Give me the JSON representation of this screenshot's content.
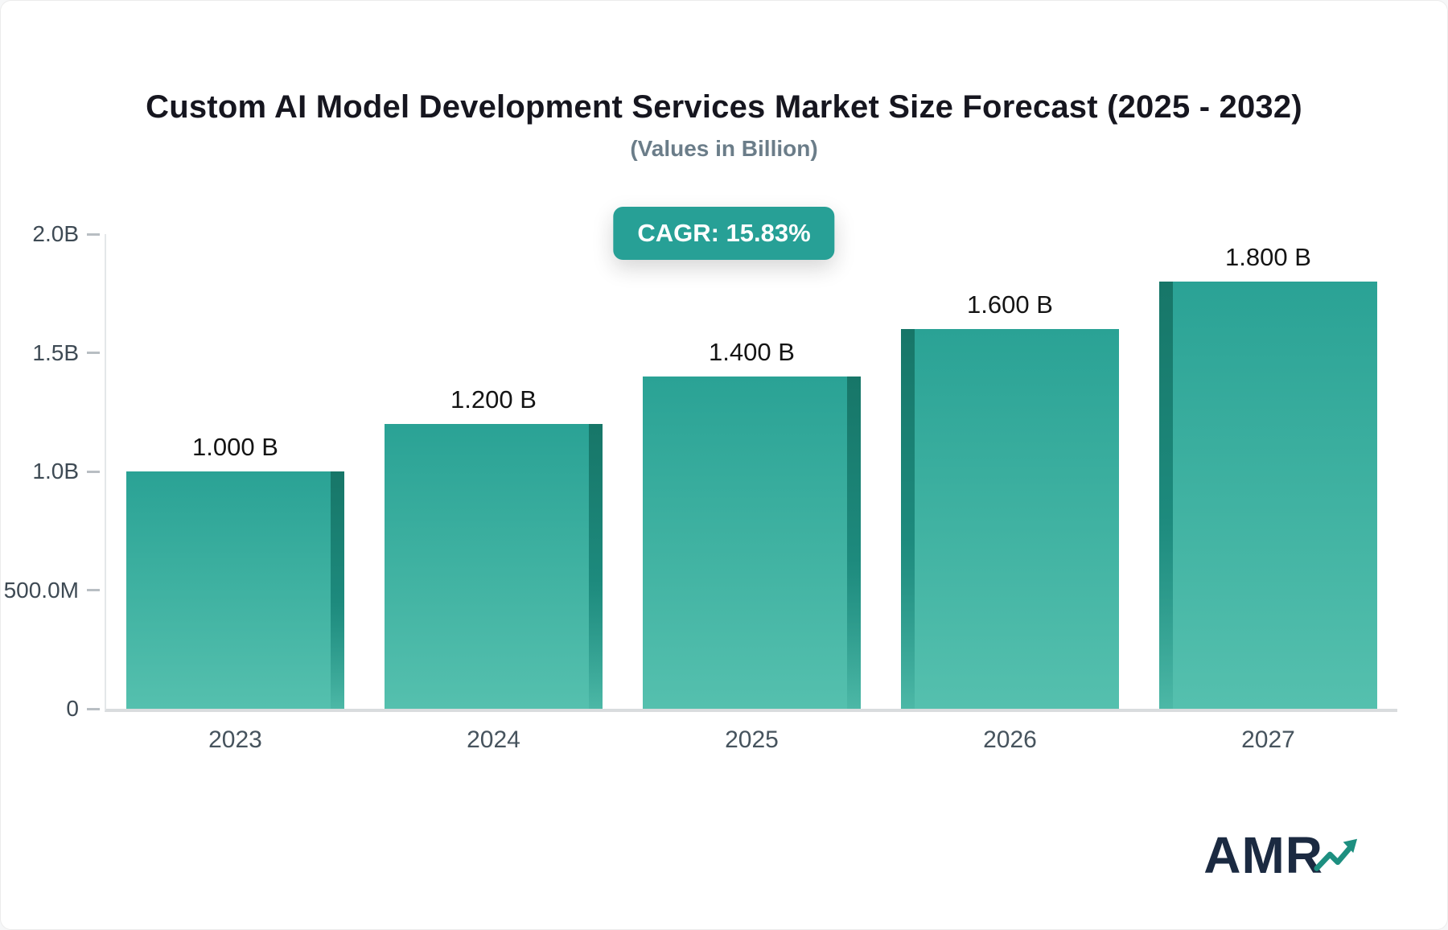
{
  "header": {
    "title": "Custom AI Model Development Services Market Size Forecast (2025 - 2032)",
    "subtitle": "(Values in Billion)"
  },
  "badge": {
    "label": "CAGR: 15.83%"
  },
  "chart_data": {
    "type": "bar",
    "title": "Custom AI Model Development Services Market Size Forecast (2025 - 2032)",
    "subtitle": "(Values in Billion)",
    "categories": [
      "2023",
      "2024",
      "2025",
      "2026",
      "2027"
    ],
    "values": [
      1.0,
      1.2,
      1.4,
      1.6,
      1.8
    ],
    "data_labels": [
      "1.000 B",
      "1.200 B",
      "1.400 B",
      "1.600 B",
      "1.800 B"
    ],
    "unit": "Billion",
    "xlabel": "",
    "ylabel": "",
    "ylim": [
      0,
      2.0
    ],
    "yticks": [
      {
        "value": 0,
        "label": "0"
      },
      {
        "value": 0.5,
        "label": "500.0M"
      },
      {
        "value": 1.0,
        "label": "1.0B"
      },
      {
        "value": 1.5,
        "label": "1.5B"
      },
      {
        "value": 2.0,
        "label": "2.0B"
      }
    ],
    "grid": false,
    "legend": "none",
    "annotation": "CAGR: 15.83%",
    "colors": {
      "bar_gradient_top": "#2aa295",
      "bar_gradient_bottom": "#55c0ae",
      "bar_edge": "#177668",
      "badge_bg": "#27a096",
      "logo_navy": "#1b2a41",
      "logo_arrow": "#1d8f80"
    }
  },
  "logo": {
    "text": "AMR"
  }
}
